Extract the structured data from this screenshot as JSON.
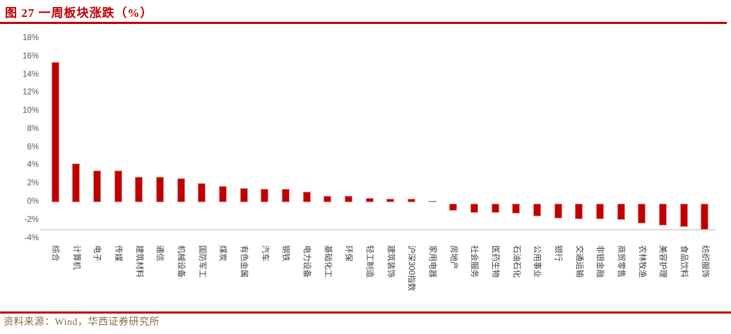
{
  "page": {
    "title": "图 27 一周板块涨跌（%）",
    "source_note": "资料来源：Wind，华西证券研究所"
  },
  "colors": {
    "bar": "#C00000",
    "title_text": "#C00000",
    "title_rule": "#C00000",
    "footer_rule": "#C00000",
    "source_text": "#8A6D3B",
    "axis_line": "#D9D9D9",
    "ytick_text": "#595959",
    "xtick_text": "#404040"
  },
  "chart_data": {
    "type": "bar",
    "title": "一周板块涨跌（%）",
    "xlabel": "",
    "ylabel": "",
    "ylim": [
      -4,
      18
    ],
    "grid": false,
    "legend": "none",
    "bar_color": "#C00000",
    "yticks": [
      18,
      16,
      14,
      12,
      10,
      8,
      6,
      4,
      2,
      0,
      -2,
      -4
    ],
    "ytick_labels": [
      "18%",
      "16%",
      "14%",
      "12%",
      "10%",
      "8%",
      "6%",
      "4%",
      "2%",
      "0%",
      "-2%",
      "-4%"
    ],
    "categories": [
      "综合",
      "计算机",
      "电子",
      "传媒",
      "建筑材料",
      "通信",
      "机械设备",
      "国防军工",
      "煤炭",
      "有色金属",
      "汽车",
      "钢铁",
      "电力设备",
      "基础化工",
      "环保",
      "轻工制造",
      "建筑装饰",
      "沪深300指数",
      "家用电器",
      "房地产",
      "社会服务",
      "医药生物",
      "石油石化",
      "公用事业",
      "银行",
      "交通运输",
      "非银金融",
      "商贸零售",
      "农林牧渔",
      "美容护理",
      "食品饮料",
      "纺织服饰"
    ],
    "values": [
      15.5,
      4.3,
      3.5,
      3.5,
      2.8,
      2.8,
      2.7,
      2.1,
      1.8,
      1.6,
      1.5,
      1.5,
      1.2,
      0.7,
      0.7,
      0.5,
      0.4,
      0.4,
      0.2,
      -0.8,
      -1.0,
      -1.0,
      -1.1,
      -1.4,
      -1.6,
      -1.7,
      -1.7,
      -1.8,
      -2.2,
      -2.4,
      -2.6,
      -2.9
    ]
  }
}
